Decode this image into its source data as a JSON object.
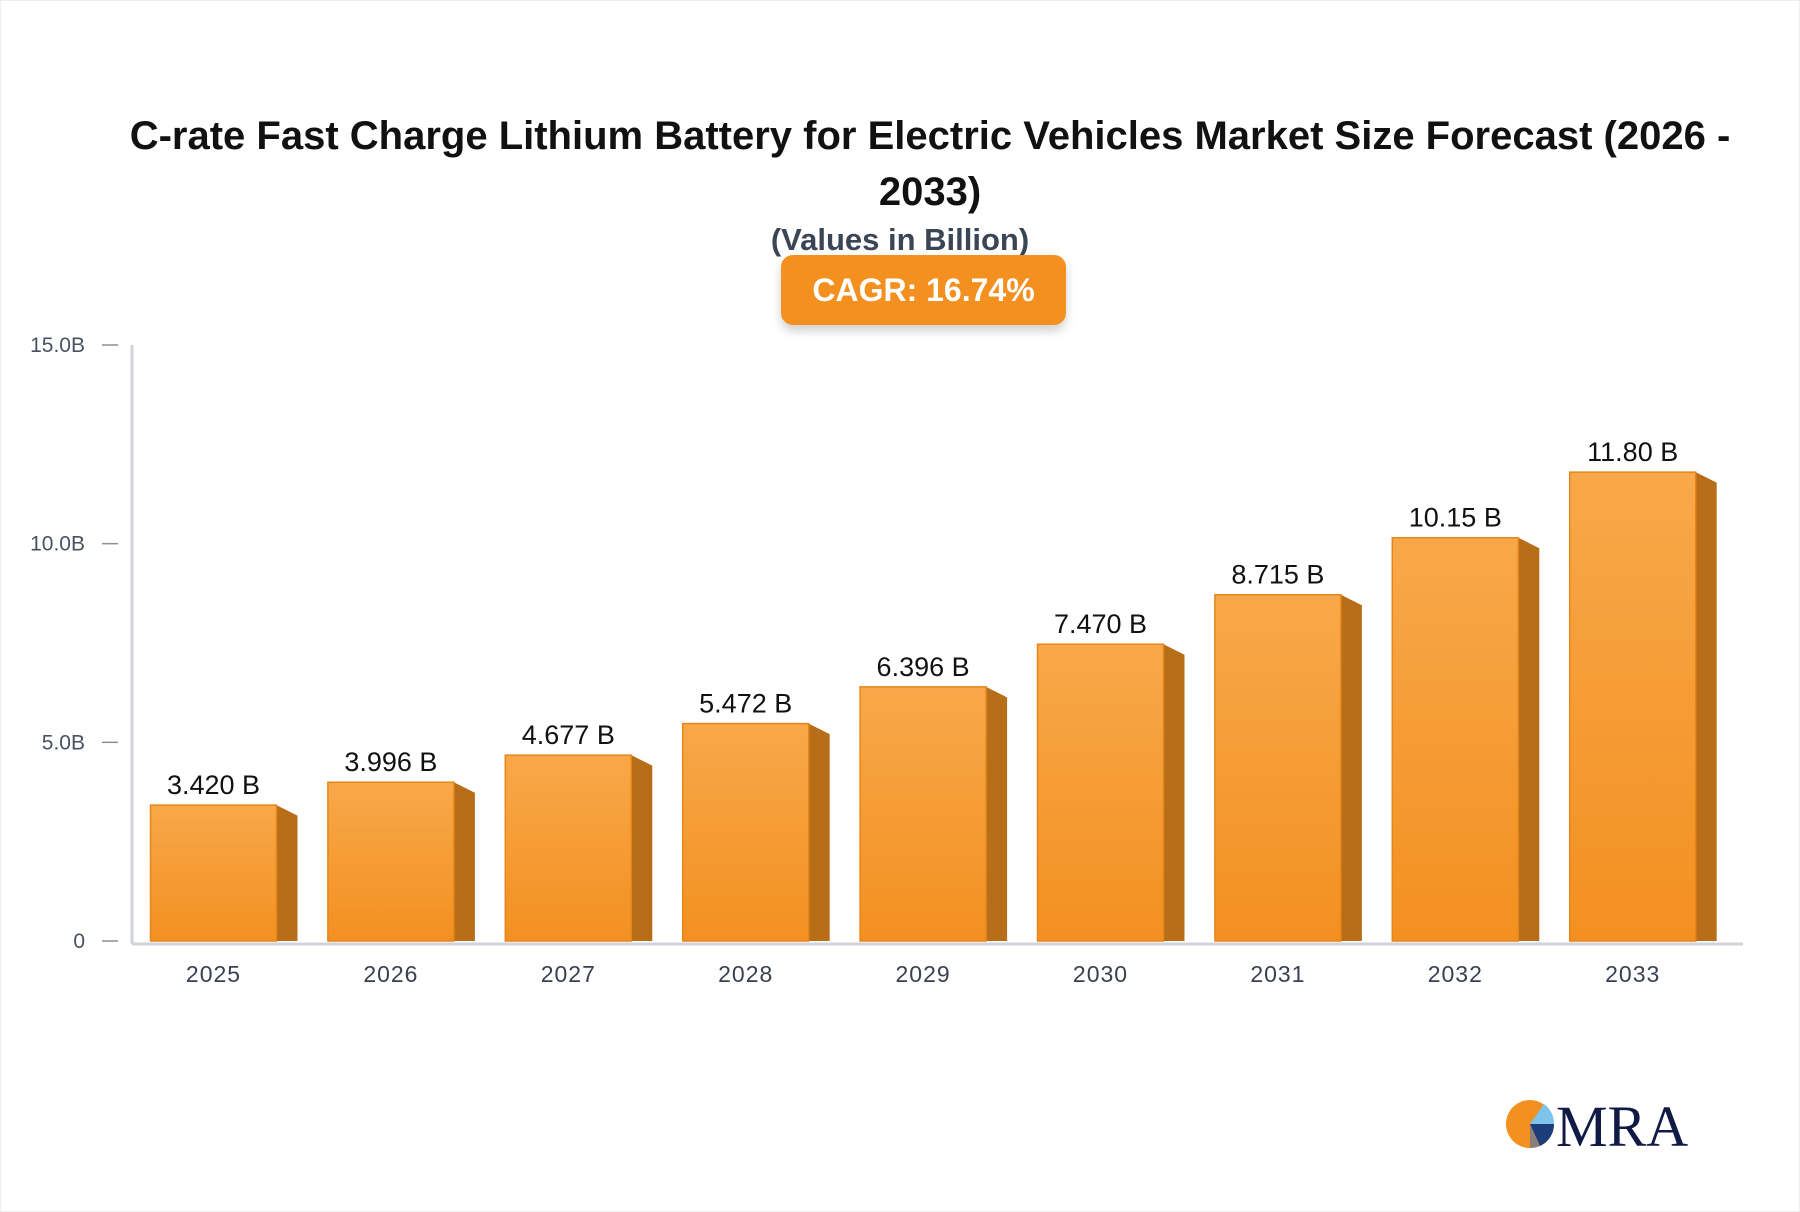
{
  "chart_data": {
    "type": "bar",
    "title": "C-rate Fast Charge Lithium Battery for Electric Vehicles Market Size Forecast (2026 - 2033)",
    "subtitle": "(Values in Billion)",
    "badge": "CAGR: 16.74%",
    "categories": [
      "2025",
      "2026",
      "2027",
      "2028",
      "2029",
      "2030",
      "2031",
      "2032",
      "2033"
    ],
    "values": [
      3.42,
      3.996,
      4.677,
      5.472,
      6.396,
      7.47,
      8.715,
      10.15,
      11.8
    ],
    "data_labels": [
      "3.420 B",
      "3.996 B",
      "4.677 B",
      "5.472 B",
      "6.396 B",
      "7.470 B",
      "8.715 B",
      "10.15 B",
      "11.80 B"
    ],
    "ylim": [
      0,
      15
    ],
    "yticks": [
      0,
      5,
      10,
      15
    ],
    "ytick_labels": [
      "0",
      "5.0B",
      "10.0B",
      "15.0B"
    ],
    "grid": false,
    "colors": {
      "bar_top": "#f8a84a",
      "bar_bottom": "#f39020",
      "bar_side": "#b86e18",
      "badge": "#f3901f",
      "axis": "#d0d3da"
    }
  },
  "logo": {
    "text": "MRA"
  }
}
